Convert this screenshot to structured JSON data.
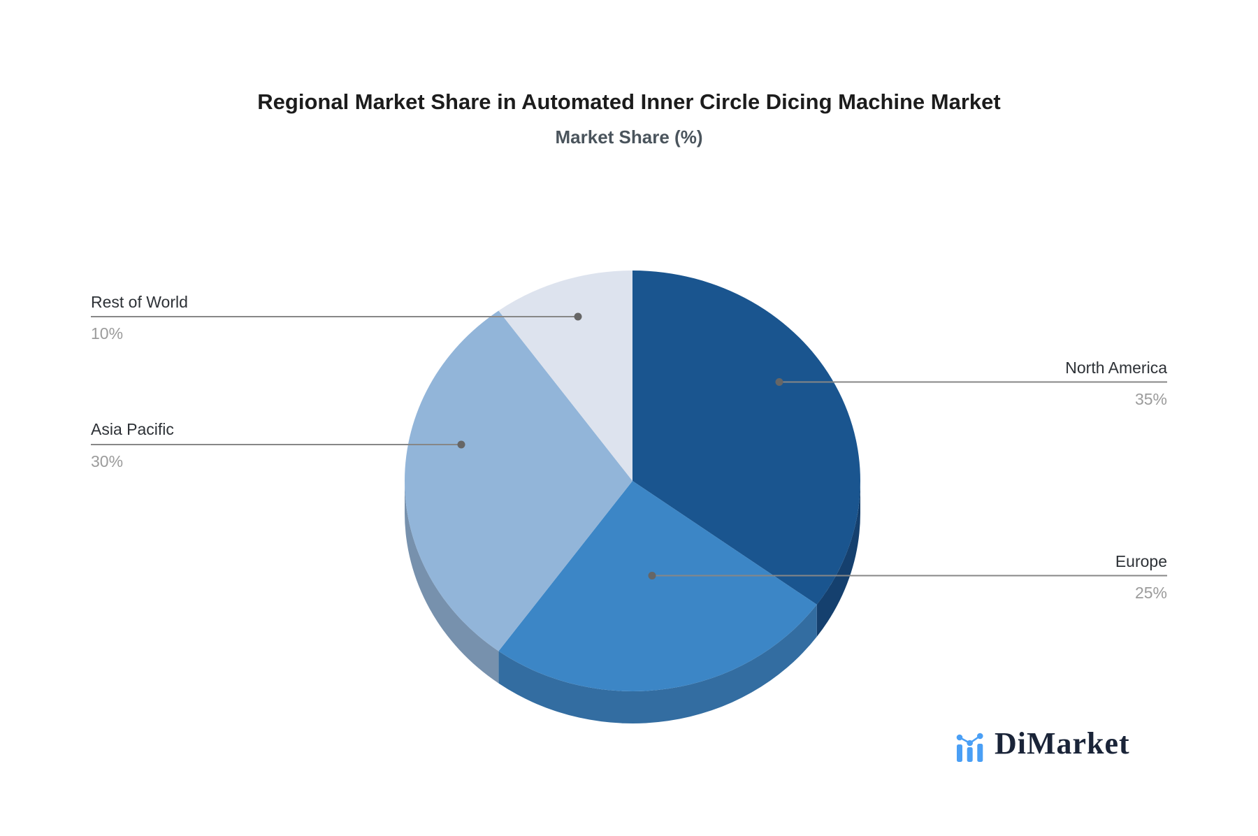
{
  "header": {
    "title": "Regional Market Share in Automated Inner Circle Dicing Machine Market",
    "subtitle": "Market Share (%)"
  },
  "chart_data": {
    "type": "pie",
    "style": "3d",
    "title": "Regional Market Share in Automated Inner Circle Dicing Machine Market",
    "subtitle": "Market Share (%)",
    "unit": "%",
    "start_angle_deg": 90,
    "direction": "clockwise",
    "legend_position": "none",
    "slices": [
      {
        "label": "North America",
        "value": 35,
        "pct_text": "35%",
        "color": "#1a558f",
        "side_color": "#15406e",
        "label_side": "right"
      },
      {
        "label": "Europe",
        "value": 25,
        "pct_text": "25%",
        "color": "#3c86c6",
        "side_color": "#336da1",
        "label_side": "right"
      },
      {
        "label": "Asia Pacific",
        "value": 30,
        "pct_text": "30%",
        "color": "#92b5d9",
        "side_color": "#7791ad",
        "label_side": "left"
      },
      {
        "label": "Rest of World",
        "value": 10,
        "pct_text": "10%",
        "color": "#dde3ee",
        "side_color": "#c3cedd",
        "label_side": "left"
      }
    ],
    "leader_line_color": "#878787",
    "dot_color": "#666666",
    "label_color": "#2d3136",
    "pct_color": "#9b9b9b"
  },
  "logo": {
    "text": "DiMarket",
    "icon": "bar-line-chart-icon",
    "bar_color": "#4a9ff5",
    "text_color": "#1a2438"
  }
}
